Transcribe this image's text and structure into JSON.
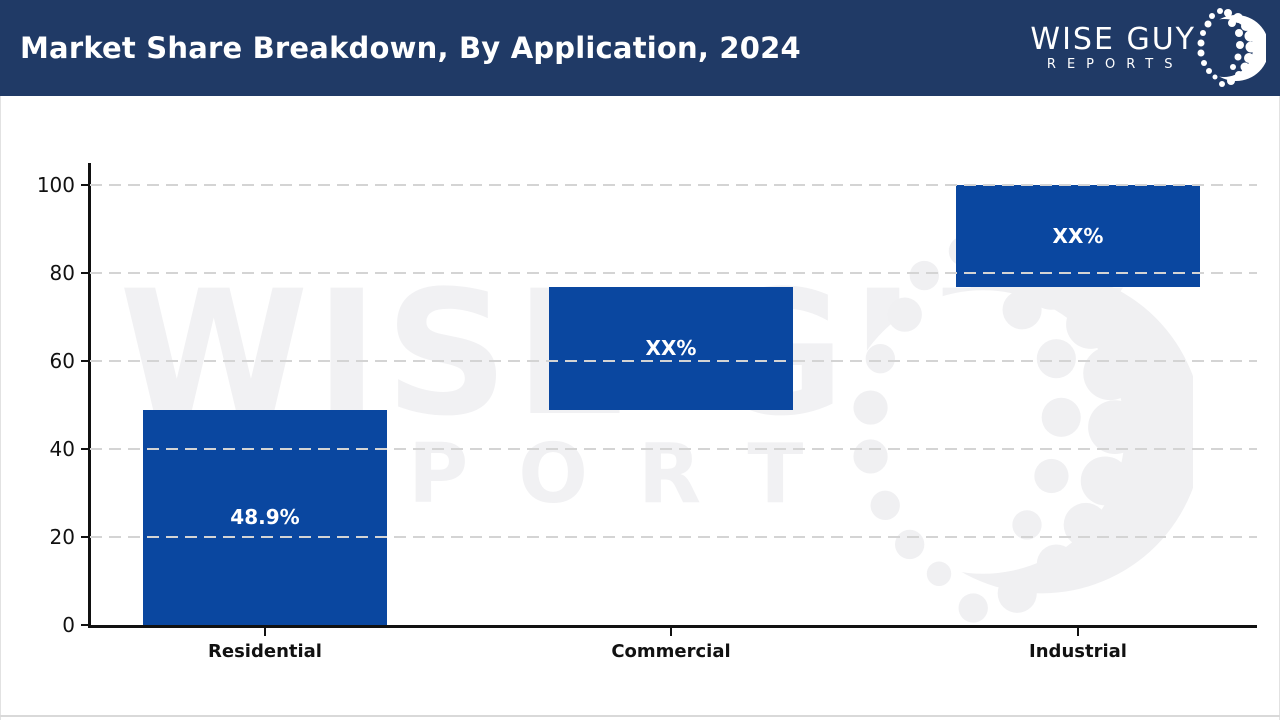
{
  "header": {
    "title": "Market Share Breakdown, By Application, 2024",
    "logo": {
      "line1": "WISE GUY",
      "line2": "REPORTS"
    }
  },
  "watermark": {
    "line1": "WISE GUY",
    "line2": "REPORTS"
  },
  "colors": {
    "header_bg": "#203a66",
    "bar": "#0a47a0",
    "bar_label": "#ffffff",
    "grid": "#d4d4d4",
    "axis": "#111111",
    "watermark": "#f1f1f3"
  },
  "chart_data": {
    "type": "bar",
    "subtype": "waterfall",
    "title": "Market Share Breakdown, By Application, 2024",
    "categories": [
      "Residential",
      "Commercial",
      "Industrial"
    ],
    "series": [
      {
        "name": "Market Share %",
        "segments": [
          {
            "category": "Residential",
            "start": 0,
            "end": 48.9,
            "label": "48.9%"
          },
          {
            "category": "Commercial",
            "start": 48.9,
            "end": 76.9,
            "label": "XX%"
          },
          {
            "category": "Industrial",
            "start": 76.9,
            "end": 100,
            "label": "XX%"
          }
        ]
      }
    ],
    "ylim": [
      0,
      100
    ],
    "yticks": [
      0,
      20,
      40,
      60,
      80,
      100
    ],
    "xlabel": "",
    "ylabel": "",
    "grid": "horizontal dashed, drawn above bars",
    "legend": "none"
  }
}
